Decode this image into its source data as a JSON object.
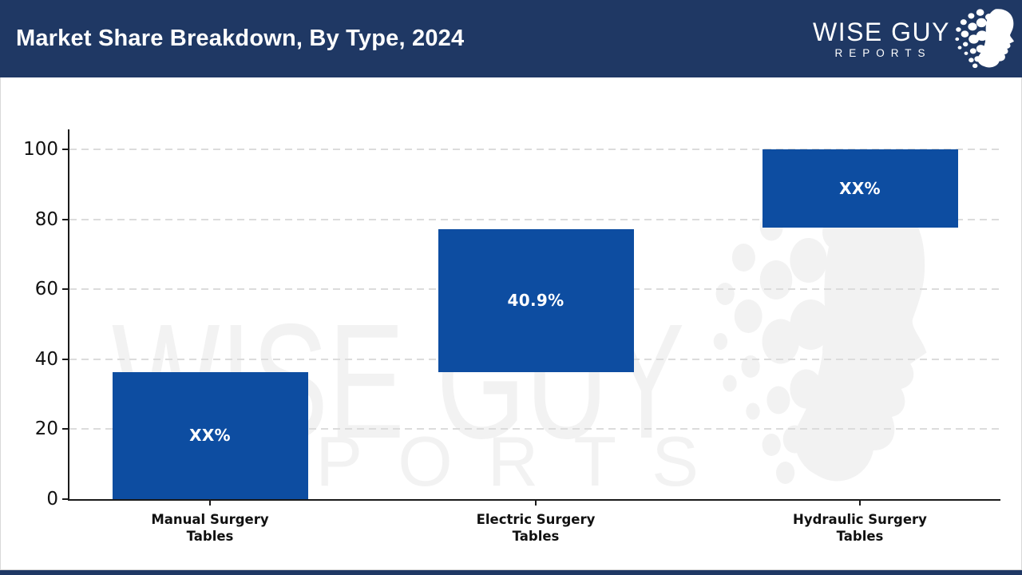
{
  "header": {
    "title": "Market Share Breakdown, By Type, 2024",
    "logo": {
      "name": "WISE GUY",
      "tagline": "REPORTS"
    }
  },
  "watermark": {
    "line1": "WISE GUY",
    "line2": "REPORTS"
  },
  "colors": {
    "header_bg": "#1f3864",
    "footer_bg": "#1f3864",
    "bar": "#0d4da1",
    "grid": "#dcdcdc",
    "axis": "#1a1a1a",
    "watermark": "#f2f2f2",
    "value_label": "#ffffff"
  },
  "chart_data": {
    "type": "bar",
    "subtype": "waterfall",
    "title": "Market Share Breakdown, By Type, 2024",
    "categories": [
      "Manual Surgery Tables",
      "Electric Surgery Tables",
      "Hydraulic Surgery Tables"
    ],
    "category_lines": [
      [
        "Manual Surgery",
        "Tables"
      ],
      [
        "Electric Surgery",
        "Tables"
      ],
      [
        "Hydraulic Surgery",
        "Tables"
      ]
    ],
    "series": [
      {
        "name": "Market share (%)",
        "segments": [
          {
            "category": "Manual Surgery Tables",
            "label": "XX%",
            "start": 0,
            "end": 36.3
          },
          {
            "category": "Electric Surgery Tables",
            "label": "40.9%",
            "start": 36.3,
            "end": 77.2
          },
          {
            "category": "Hydraulic Surgery Tables",
            "label": "XX%",
            "start": 77.6,
            "end": 100
          }
        ]
      }
    ],
    "xlabel": "",
    "ylabel": "",
    "ylim": [
      0,
      100
    ],
    "yticks": [
      0,
      20,
      40,
      60,
      80,
      100
    ],
    "grid": {
      "horizontal": true,
      "style": "dashed",
      "color": "#dcdcdc"
    },
    "legend": "none",
    "bar_color": "#0d4da1",
    "value_label_color": "#ffffff"
  }
}
